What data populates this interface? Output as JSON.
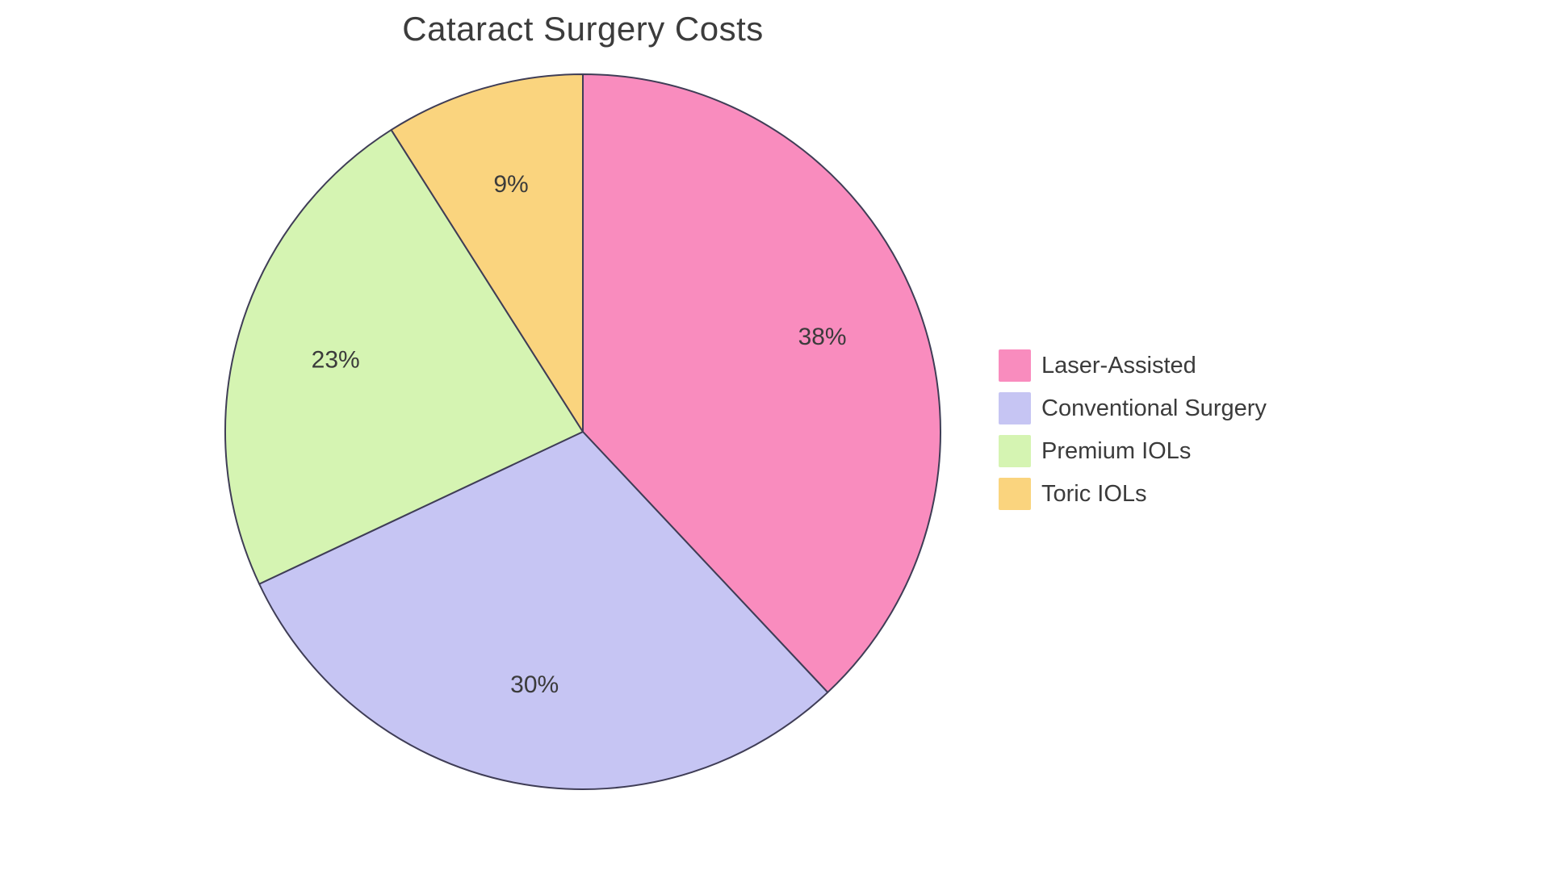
{
  "chart_data": {
    "type": "pie",
    "title": "Cataract Surgery Costs",
    "legend_position": "right",
    "start_angle_deg": 0,
    "direction": "clockwise",
    "stroke_color": "#3f3d56",
    "label_color": "#3b3b3b",
    "segments": [
      {
        "label": "Laser-Assisted",
        "value": 38,
        "percent_label": "38%",
        "color": "#f98cbe"
      },
      {
        "label": "Conventional Surgery",
        "value": 30,
        "percent_label": "30%",
        "color": "#c6c5f3"
      },
      {
        "label": "Premium IOLs",
        "value": 23,
        "percent_label": "23%",
        "color": "#d5f4b2"
      },
      {
        "label": "Toric IOLs",
        "value": 9,
        "percent_label": "9%",
        "color": "#fad47e"
      }
    ]
  }
}
